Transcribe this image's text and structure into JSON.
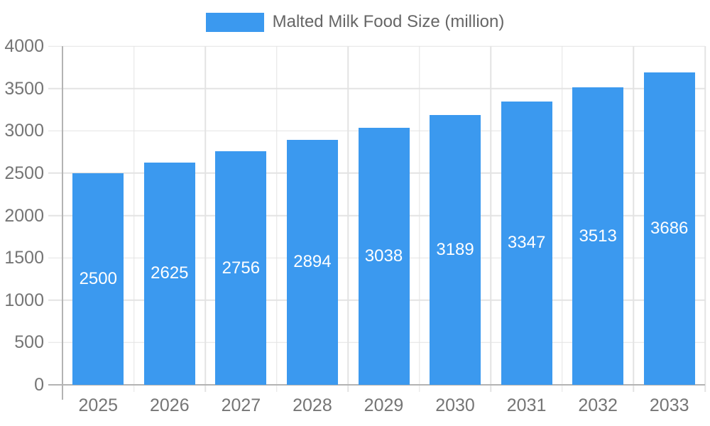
{
  "chart_data": {
    "type": "bar",
    "title": "",
    "categories": [
      "2025",
      "2026",
      "2027",
      "2028",
      "2029",
      "2030",
      "2031",
      "2032",
      "2033"
    ],
    "series": [
      {
        "name": "Malted Milk Food Size (million)",
        "values": [
          2500,
          2625,
          2756,
          2894,
          3038,
          3189,
          3347,
          3513,
          3686
        ]
      }
    ],
    "xlabel": "",
    "ylabel": "",
    "ylim": [
      0,
      4000
    ],
    "ytick_step": 500,
    "grid": true,
    "legend_position": "top",
    "bar_value_labels_shown": true
  },
  "colors": {
    "bar": "#3B99EF",
    "bar_label_text": "#FFFFFF",
    "axis_line": "#B3B3B3",
    "gridline": "#E3E3E3",
    "tick_label_text": "#757575",
    "legend_text": "#666666",
    "background": "#FFFFFF"
  }
}
